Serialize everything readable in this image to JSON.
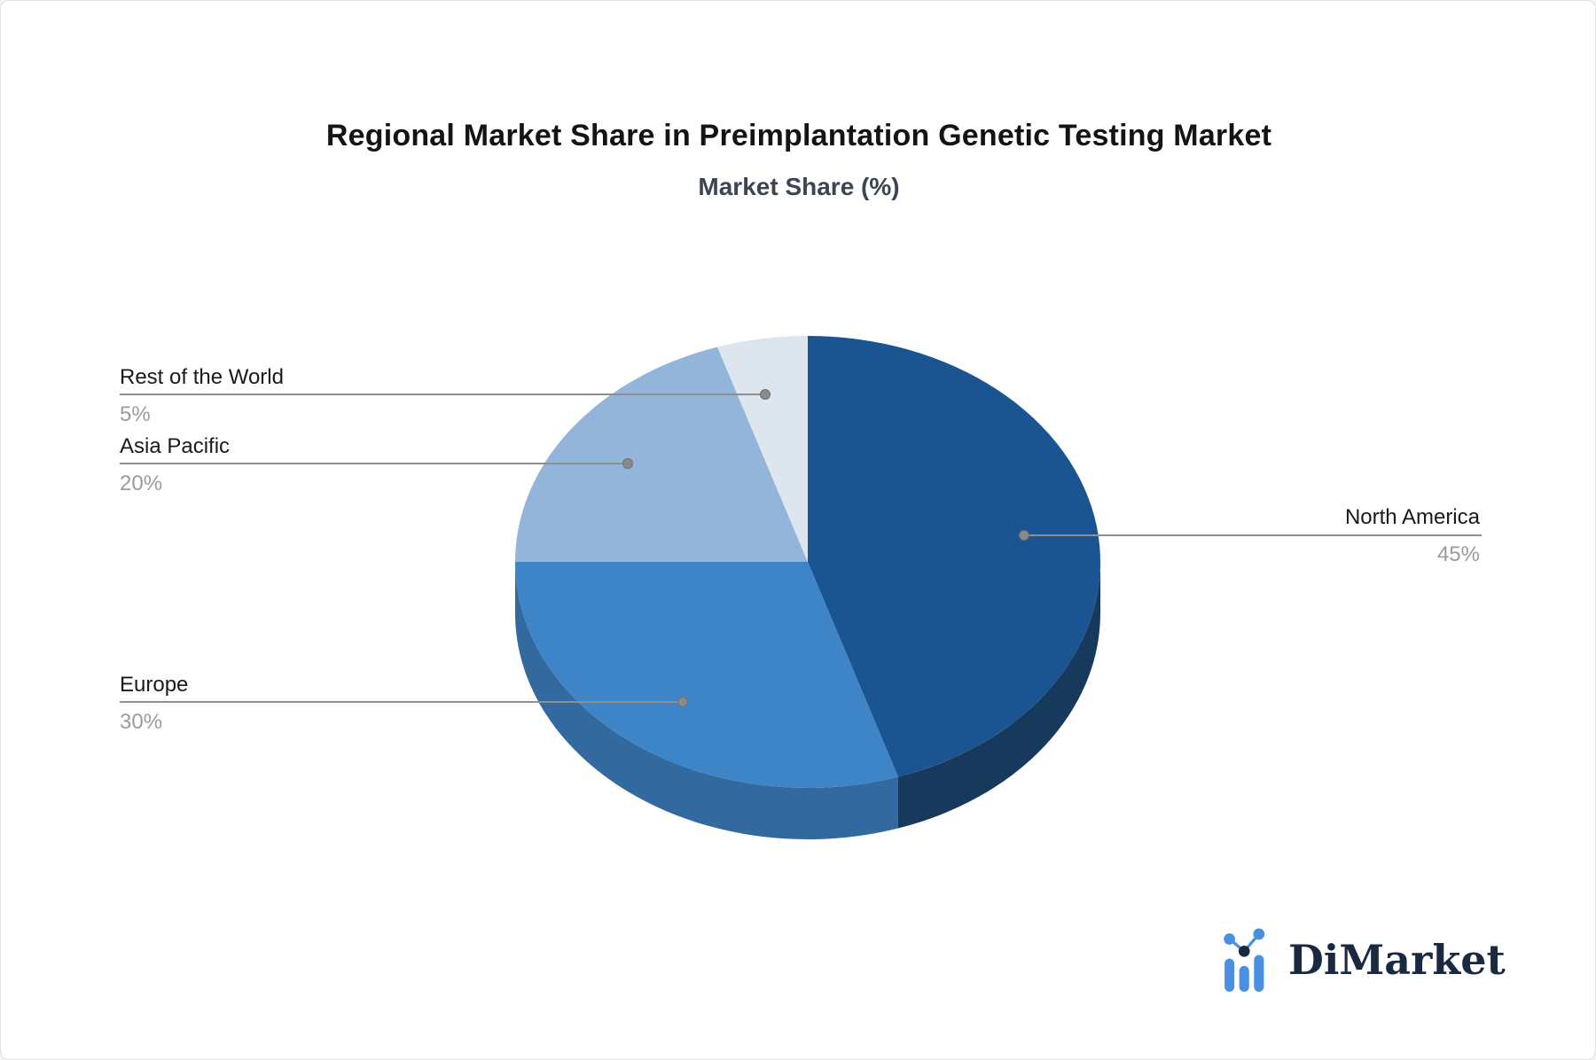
{
  "chart_data": {
    "type": "pie",
    "title": "Regional Market Share in Preimplantation Genetic Testing Market",
    "subtitle": "Market Share (%)",
    "unit": "%",
    "labels": [
      "North America",
      "Europe",
      "Asia Pacific",
      "Rest of the World"
    ],
    "values": [
      45,
      30,
      20,
      5
    ],
    "display_values": [
      "45%",
      "30%",
      "20%",
      "5%"
    ],
    "colors": [
      "#1a5591",
      "#3d85c6",
      "#93b5da",
      "#dde6ef"
    ],
    "side_colors": [
      "#17395c",
      "#32699e",
      "#5d7f9f",
      "#aebfd0"
    ],
    "start_angle_deg": 0,
    "direction": "clockwise",
    "style_3d": true,
    "legend_position": "callout-labels",
    "label_line_color": "#8f8f8f",
    "label_dot_color": "#8a8a8a",
    "label_text_color": "#1a1a1a",
    "value_text_color": "#9b9b9b"
  },
  "branding": {
    "logo_text": "DiMarket",
    "logo_text_color": "#1b2940",
    "logo_accent_color": "#4a90e2",
    "logo_dot_color": "#1b2940"
  }
}
